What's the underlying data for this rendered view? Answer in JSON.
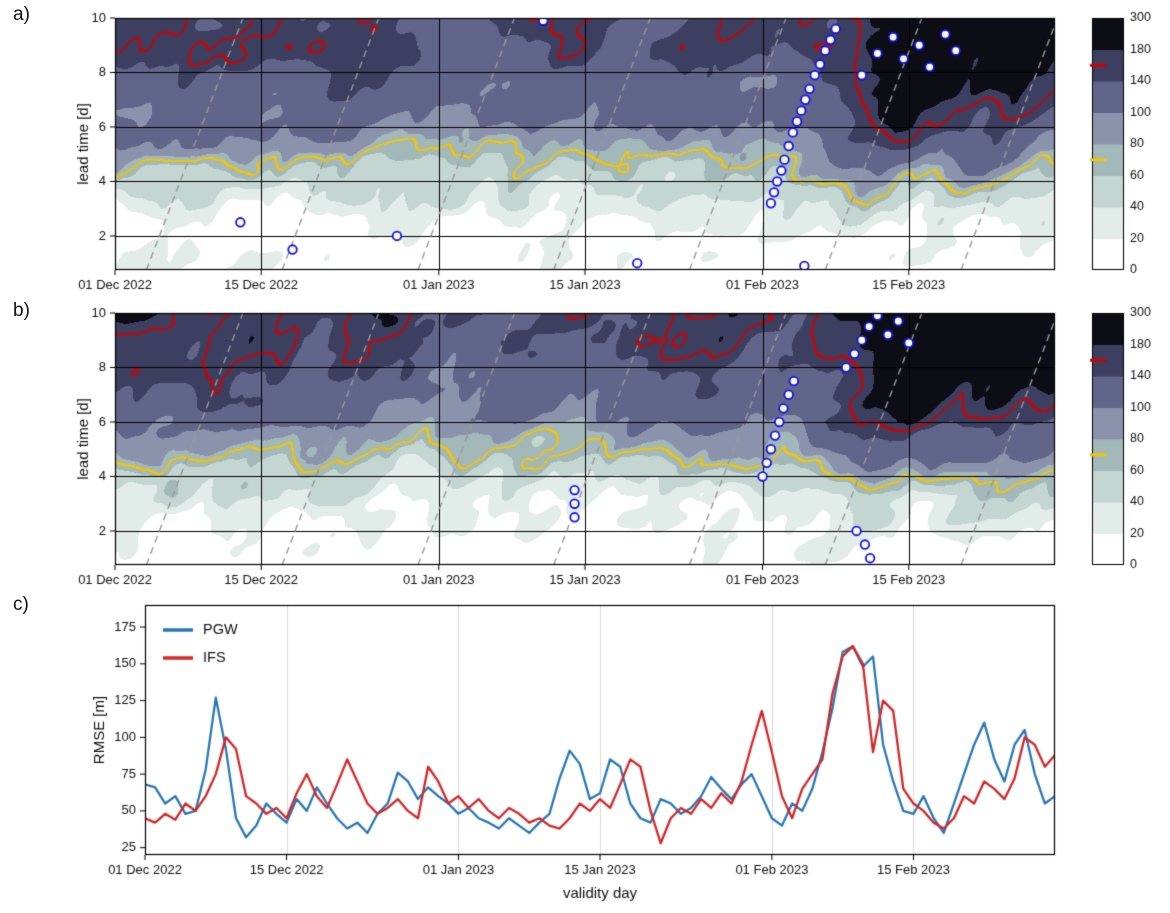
{
  "figure": {
    "panel_labels": {
      "a": "a)",
      "b": "b)",
      "c": "c)"
    }
  },
  "colors": {
    "fill_scale": [
      "#ffffff",
      "#e2ece9",
      "#c4d6d2",
      "#a3b8b8",
      "#8b93ac",
      "#62658a",
      "#3c3f60",
      "#0d0d16"
    ],
    "contour_yellow": "#f2c500",
    "contour_red": "#d40000",
    "marker_blue": "#1414e6",
    "dashed_gray": "#999999",
    "pgw_blue": "#2878b5",
    "ifs_red": "#d62728",
    "grid_gray": "#d9d9d9"
  },
  "chart_data": [
    {
      "id": "a",
      "type": "heatmap",
      "ylabel": "lead time [d]",
      "xlabel": "",
      "x_ticks": [
        {
          "day": 0,
          "label": "01 Dec 2022"
        },
        {
          "day": 14,
          "label": "15 Dec 2022"
        },
        {
          "day": 31,
          "label": "01 Jan 2023"
        },
        {
          "day": 45,
          "label": "15 Jan 2023"
        },
        {
          "day": 62,
          "label": "01 Feb 2023"
        },
        {
          "day": 76,
          "label": "15 Feb 2023"
        }
      ],
      "y_ticks": [
        2,
        4,
        6,
        8,
        10
      ],
      "xlim_days": [
        0,
        90
      ],
      "ylim": [
        0.75,
        10
      ],
      "colorbar": {
        "levels": [
          0,
          20,
          40,
          60,
          80,
          100,
          140,
          180,
          300
        ],
        "yellow_mark": 70,
        "red_mark": 160
      },
      "contour_levels": {
        "yellow": 70,
        "red": 160
      },
      "field_model": {
        "base_by_lead": [
          3,
          10,
          22,
          42,
          64,
          86,
          102,
          114,
          124,
          133
        ],
        "time_factor_day_step": 5,
        "time_factor": [
          1.2,
          1.28,
          1.1,
          1.25,
          1.12,
          0.95,
          1.05,
          1.22,
          1.0,
          1.12,
          1.25,
          1.05,
          1.18,
          1.55,
          2.25,
          1.55,
          1.75,
          1.35,
          1.15
        ],
        "noise_seed": 7,
        "noise_amp": 21
      },
      "dashed_init_days": [
        3,
        16,
        29,
        42,
        55,
        68,
        81
      ],
      "markers": [
        [
          12,
          2.5
        ],
        [
          17,
          1.5
        ],
        [
          27,
          2
        ],
        [
          50,
          1
        ],
        [
          66,
          0.9
        ],
        [
          62.8,
          3.2
        ],
        [
          63.1,
          3.6
        ],
        [
          63.4,
          4.0
        ],
        [
          63.8,
          4.4
        ],
        [
          64.1,
          4.8
        ],
        [
          64.5,
          5.3
        ],
        [
          64.9,
          5.8
        ],
        [
          65.3,
          6.2
        ],
        [
          65.7,
          6.6
        ],
        [
          66.1,
          7.0
        ],
        [
          66.5,
          7.4
        ],
        [
          67,
          7.9
        ],
        [
          67.5,
          8.3
        ],
        [
          68,
          8.8
        ],
        [
          68.5,
          9.2
        ],
        [
          69,
          9.6
        ],
        [
          41,
          9.9
        ],
        [
          71.5,
          7.9
        ],
        [
          73,
          8.7
        ],
        [
          74.5,
          9.3
        ],
        [
          75.5,
          8.5
        ],
        [
          77,
          9.0
        ],
        [
          78,
          8.2
        ],
        [
          79.5,
          9.4
        ],
        [
          80.5,
          8.8
        ]
      ]
    },
    {
      "id": "b",
      "type": "heatmap",
      "ylabel": "lead time [d]",
      "xlabel": "",
      "x_ticks": [
        {
          "day": 0,
          "label": "01 Dec 2022"
        },
        {
          "day": 14,
          "label": "15 Dec 2022"
        },
        {
          "day": 31,
          "label": "01 Jan 2023"
        },
        {
          "day": 45,
          "label": "15 Jan 2023"
        },
        {
          "day": 62,
          "label": "01 Feb 2023"
        },
        {
          "day": 76,
          "label": "15 Feb 2023"
        }
      ],
      "y_ticks": [
        2,
        4,
        6,
        8,
        10
      ],
      "xlim_days": [
        0,
        90
      ],
      "ylim": [
        0.75,
        10
      ],
      "colorbar": {
        "levels": [
          0,
          20,
          40,
          60,
          80,
          100,
          140,
          180,
          300
        ],
        "yellow_mark": 70,
        "red_mark": 160
      },
      "contour_levels": {
        "yellow": 70,
        "red": 160
      },
      "field_model": {
        "base_by_lead": [
          3,
          10,
          22,
          42,
          64,
          86,
          102,
          114,
          124,
          133
        ],
        "time_factor_day_step": 5,
        "time_factor": [
          1.3,
          1.38,
          1.15,
          1.28,
          1.15,
          1.0,
          1.1,
          1.15,
          1.05,
          1.18,
          1.3,
          1.1,
          1.25,
          1.65,
          2.35,
          1.65,
          1.85,
          1.45,
          1.2
        ],
        "noise_seed": 13,
        "noise_amp": 21
      },
      "dashed_init_days": [
        3,
        16,
        29,
        42,
        55,
        68,
        81
      ],
      "markers": [
        [
          44,
          2.5
        ],
        [
          44,
          3.0
        ],
        [
          44,
          3.5
        ],
        [
          62,
          4.0
        ],
        [
          62.4,
          4.5
        ],
        [
          62.8,
          5.0
        ],
        [
          63.2,
          5.5
        ],
        [
          63.6,
          6.0
        ],
        [
          64,
          6.5
        ],
        [
          64.5,
          7.0
        ],
        [
          65,
          7.5
        ],
        [
          70,
          8.0
        ],
        [
          70.8,
          8.5
        ],
        [
          71.5,
          9.0
        ],
        [
          72.2,
          9.5
        ],
        [
          73,
          9.9
        ],
        [
          74,
          9.2
        ],
        [
          75,
          9.7
        ],
        [
          76,
          8.9
        ],
        [
          71,
          2.0
        ],
        [
          71.8,
          1.5
        ],
        [
          72.3,
          1.0
        ]
      ]
    },
    {
      "id": "c",
      "type": "line",
      "xlabel": "validity day",
      "ylabel": "RMSE [m]",
      "x_ticks": [
        {
          "day": 0,
          "label": "01 Dec 2022"
        },
        {
          "day": 14,
          "label": "15 Dec 2022"
        },
        {
          "day": 31,
          "label": "01 Jan 2023"
        },
        {
          "day": 45,
          "label": "15 Jan 2023"
        },
        {
          "day": 62,
          "label": "01 Feb 2023"
        },
        {
          "day": 76,
          "label": "15 Feb 2023"
        }
      ],
      "y_ticks": [
        25,
        50,
        75,
        100,
        125,
        150,
        175
      ],
      "xlim_days": [
        0,
        90
      ],
      "ylim": [
        20,
        190
      ],
      "legend_position": "upper-left",
      "series": [
        {
          "name": "PGW",
          "color_key": "pgw_blue",
          "values": [
            68,
            66,
            55,
            60,
            48,
            50,
            78,
            127,
            92,
            45,
            32,
            40,
            55,
            48,
            42,
            58,
            50,
            66,
            55,
            45,
            38,
            42,
            35,
            48,
            55,
            76,
            70,
            58,
            66,
            60,
            55,
            48,
            52,
            45,
            42,
            38,
            45,
            40,
            35,
            42,
            48,
            72,
            91,
            82,
            58,
            62,
            85,
            80,
            55,
            45,
            42,
            58,
            55,
            48,
            52,
            60,
            73,
            65,
            58,
            68,
            75,
            60,
            45,
            40,
            55,
            50,
            65,
            90,
            120,
            158,
            162,
            148,
            155,
            95,
            70,
            50,
            48,
            60,
            45,
            35,
            55,
            75,
            95,
            110,
            85,
            70,
            95,
            105,
            75,
            55,
            60
          ]
        },
        {
          "name": "IFS",
          "color_key": "ifs_red",
          "values": [
            45,
            42,
            48,
            44,
            55,
            50,
            60,
            75,
            100,
            92,
            60,
            55,
            48,
            52,
            45,
            62,
            75,
            60,
            52,
            68,
            85,
            70,
            55,
            48,
            52,
            58,
            50,
            45,
            80,
            70,
            55,
            60,
            52,
            58,
            50,
            45,
            52,
            48,
            42,
            45,
            40,
            38,
            45,
            55,
            50,
            58,
            52,
            68,
            85,
            80,
            50,
            28,
            45,
            52,
            48,
            58,
            52,
            62,
            55,
            70,
            95,
            118,
            90,
            60,
            45,
            65,
            75,
            85,
            130,
            155,
            162,
            150,
            90,
            125,
            118,
            65,
            55,
            50,
            42,
            38,
            45,
            60,
            55,
            70,
            65,
            58,
            72,
            100,
            95,
            80,
            88
          ]
        }
      ]
    }
  ]
}
